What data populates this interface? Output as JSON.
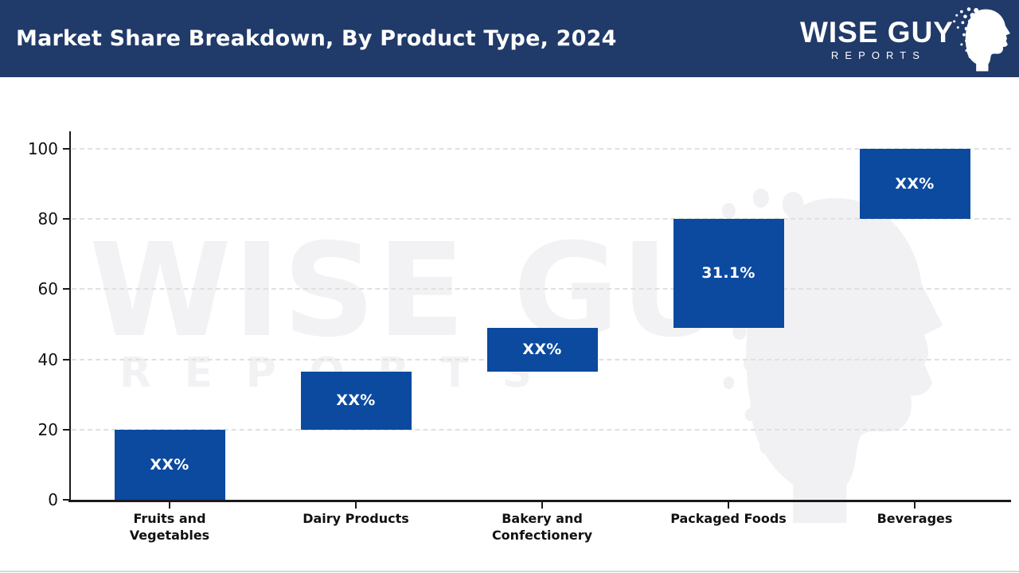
{
  "header": {
    "title": "Market Share Breakdown, By Product Type, 2024",
    "logo": {
      "name": "WISE GUY",
      "sub": "REPORTS"
    }
  },
  "watermark": {
    "line1": "WISE GUY",
    "line2": "REPORTS"
  },
  "colors": {
    "header_bg": "#203a69",
    "bar": "#0b4a9f",
    "grid": "#e0e0e0",
    "axis": "#1a1a1a",
    "value_label_text": "#ffffff",
    "watermark": "#f2f2f5"
  },
  "chart_data": {
    "type": "bar",
    "subtype": "waterfall",
    "title": "Market Share Breakdown, By Product Type, 2024",
    "xlabel": "",
    "ylabel": "",
    "ylim": [
      0,
      105
    ],
    "yticks": [
      0,
      20,
      40,
      60,
      80,
      100
    ],
    "grid": "horizontal-dashed",
    "legend": "none",
    "bar_color": "#0b4a9f",
    "categories": [
      "Fruits and Vegetables",
      "Dairy Products",
      "Bakery and Confectionery",
      "Packaged Foods",
      "Beverages"
    ],
    "bars": [
      {
        "category": "Fruits and Vegetables",
        "start": 0.0,
        "end": 20.0,
        "label": "XX%"
      },
      {
        "category": "Dairy Products",
        "start": 20.0,
        "end": 36.5,
        "label": "XX%"
      },
      {
        "category": "Bakery and Confectionery",
        "start": 36.5,
        "end": 49.0,
        "label": "XX%"
      },
      {
        "category": "Packaged Foods",
        "start": 49.0,
        "end": 80.1,
        "label": "31.1%",
        "value": 31.1
      },
      {
        "category": "Beverages",
        "start": 80.1,
        "end": 100.0,
        "label": "XX%"
      }
    ]
  }
}
